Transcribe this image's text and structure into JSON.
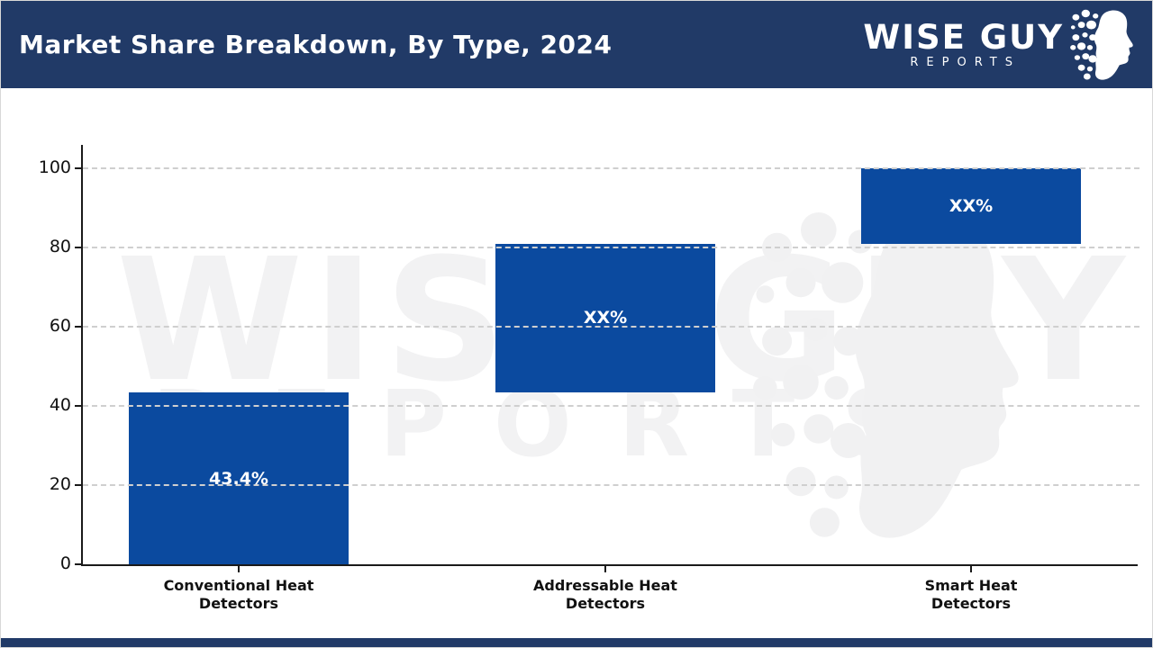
{
  "header": {
    "title": "Market Share Breakdown, By Type, 2024",
    "logo": {
      "line1": "WISE GUY",
      "line2": "REPORTS"
    }
  },
  "watermark": {
    "line1": "WISE GUY",
    "line2": "REPORTS"
  },
  "chart_data": {
    "type": "bar",
    "subtype": "floating-segment-waterfall",
    "title": "Market Share Breakdown, By Type, 2024",
    "categories": [
      [
        "Conventional Heat",
        "Detectors"
      ],
      [
        "Addressable Heat",
        "Detectors"
      ],
      [
        "Smart Heat",
        "Detectors"
      ]
    ],
    "segments": [
      {
        "start": 0,
        "end": 43.4,
        "label": "43.4%"
      },
      {
        "start": 43.4,
        "end": 81,
        "label": "XX%"
      },
      {
        "start": 81,
        "end": 100,
        "label": "XX%"
      }
    ],
    "yticks": [
      0,
      20,
      40,
      60,
      80,
      100
    ],
    "ylim": [
      0,
      100
    ],
    "xlabel": "",
    "ylabel": "",
    "legend": "none",
    "grid": "horizontal-dashed",
    "bar_color": "#0b4a9f",
    "label_color": "#ffffff"
  },
  "colors": {
    "header_bg": "#213a67",
    "bar": "#0b4a9f",
    "gridline": "#cfcfcf",
    "axis": "#1a1a1a",
    "watermark": "#f2f2f3"
  }
}
